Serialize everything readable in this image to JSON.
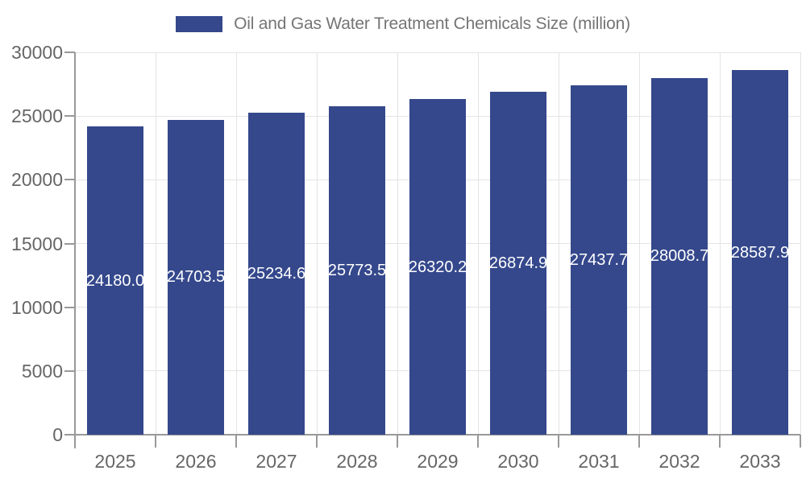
{
  "chart_data": {
    "type": "bar",
    "title": "Oil and Gas Water Treatment Chemicals Size (million)",
    "categories": [
      "2025",
      "2026",
      "2027",
      "2028",
      "2029",
      "2030",
      "2031",
      "2032",
      "2033"
    ],
    "values": [
      24180.0,
      24703.5,
      25234.6,
      25773.5,
      26320.2,
      26874.9,
      27437.7,
      28008.7,
      28587.9
    ],
    "value_labels": [
      "24180.0",
      "24703.5",
      "25234.6",
      "25773.5",
      "26320.2",
      "26874.9",
      "27437.7",
      "28008.7",
      "28587.9"
    ],
    "xlabel": "",
    "ylabel": "",
    "ylim": [
      0,
      30000
    ],
    "yticks": [
      0,
      5000,
      10000,
      15000,
      20000,
      25000,
      30000
    ],
    "grid": true,
    "legend_position": "top",
    "colors": {
      "bar": "#35488C",
      "grid_line": "#E4E4E4",
      "axis_line": "#999999",
      "tick_label": "#666666",
      "title_text": "#757575",
      "value_label": "#FFFFFF",
      "background": "#FFFFFF"
    }
  }
}
